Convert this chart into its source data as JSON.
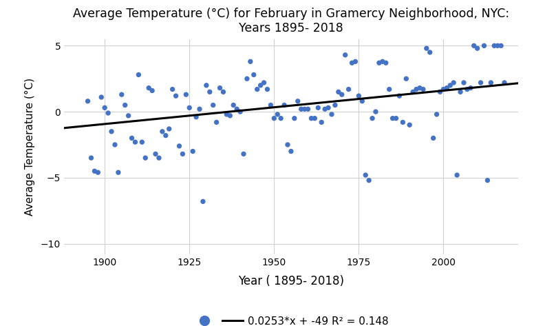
{
  "title": "Average Temperature (°C) for February in Gramercy Neighborhood, NYC:\nYears 1895- 2018",
  "xlabel": "Year ( 1895- 2018)",
  "ylabel": "Average Temperature (°C)",
  "scatter_color": "#4472C4",
  "line_color": "black",
  "slope": 0.0253,
  "intercept": -49,
  "r2": 0.148,
  "legend_eq": "0.0253*x + -49 R² = 0.148",
  "xlim": [
    1888,
    2022
  ],
  "ylim": [
    -10.8,
    5.5
  ],
  "yticks": [
    -10,
    -5,
    0,
    5
  ],
  "xticks": [
    1900,
    1925,
    1950,
    1975,
    2000
  ],
  "background_color": "#ffffff",
  "grid_color": "#d0d0d0",
  "data_points": [
    [
      1895,
      0.8
    ],
    [
      1896,
      -3.5
    ],
    [
      1897,
      -4.5
    ],
    [
      1898,
      -4.6
    ],
    [
      1899,
      1.1
    ],
    [
      1900,
      0.3
    ],
    [
      1901,
      -0.1
    ],
    [
      1902,
      -1.5
    ],
    [
      1903,
      -2.5
    ],
    [
      1904,
      -4.6
    ],
    [
      1905,
      1.3
    ],
    [
      1906,
      0.5
    ],
    [
      1907,
      -0.3
    ],
    [
      1908,
      -2.0
    ],
    [
      1909,
      -2.3
    ],
    [
      1910,
      2.8
    ],
    [
      1911,
      -2.3
    ],
    [
      1912,
      -3.5
    ],
    [
      1913,
      1.8
    ],
    [
      1914,
      1.6
    ],
    [
      1915,
      -3.2
    ],
    [
      1916,
      -3.5
    ],
    [
      1917,
      -1.5
    ],
    [
      1918,
      -1.8
    ],
    [
      1919,
      -1.3
    ],
    [
      1920,
      1.7
    ],
    [
      1921,
      1.2
    ],
    [
      1922,
      -2.6
    ],
    [
      1923,
      -3.2
    ],
    [
      1924,
      1.3
    ],
    [
      1925,
      0.3
    ],
    [
      1926,
      -3.0
    ],
    [
      1927,
      -0.4
    ],
    [
      1928,
      0.2
    ],
    [
      1929,
      -6.8
    ],
    [
      1930,
      2.0
    ],
    [
      1931,
      1.5
    ],
    [
      1932,
      0.5
    ],
    [
      1933,
      -0.8
    ],
    [
      1934,
      1.8
    ],
    [
      1935,
      1.5
    ],
    [
      1936,
      -0.2
    ],
    [
      1937,
      -0.3
    ],
    [
      1938,
      0.5
    ],
    [
      1939,
      0.2
    ],
    [
      1940,
      0.0
    ],
    [
      1941,
      -3.2
    ],
    [
      1942,
      2.5
    ],
    [
      1943,
      3.8
    ],
    [
      1944,
      2.8
    ],
    [
      1945,
      1.7
    ],
    [
      1946,
      2.0
    ],
    [
      1947,
      2.2
    ],
    [
      1948,
      1.7
    ],
    [
      1949,
      0.5
    ],
    [
      1950,
      -0.5
    ],
    [
      1951,
      -0.2
    ],
    [
      1952,
      -0.5
    ],
    [
      1953,
      0.5
    ],
    [
      1954,
      -2.5
    ],
    [
      1955,
      -3.0
    ],
    [
      1956,
      -0.5
    ],
    [
      1957,
      0.8
    ],
    [
      1958,
      0.2
    ],
    [
      1959,
      0.2
    ],
    [
      1960,
      0.2
    ],
    [
      1961,
      -0.5
    ],
    [
      1962,
      -0.5
    ],
    [
      1963,
      0.3
    ],
    [
      1964,
      -0.8
    ],
    [
      1965,
      0.2
    ],
    [
      1966,
      0.3
    ],
    [
      1967,
      -0.2
    ],
    [
      1968,
      0.5
    ],
    [
      1969,
      1.5
    ],
    [
      1970,
      1.3
    ],
    [
      1971,
      4.3
    ],
    [
      1972,
      1.7
    ],
    [
      1973,
      3.7
    ],
    [
      1974,
      3.8
    ],
    [
      1975,
      1.2
    ],
    [
      1976,
      0.8
    ],
    [
      1977,
      -4.8
    ],
    [
      1978,
      -5.2
    ],
    [
      1979,
      -0.5
    ],
    [
      1980,
      0.0
    ],
    [
      1981,
      3.7
    ],
    [
      1982,
      3.8
    ],
    [
      1983,
      3.7
    ],
    [
      1984,
      1.7
    ],
    [
      1985,
      -0.5
    ],
    [
      1986,
      -0.5
    ],
    [
      1987,
      1.2
    ],
    [
      1988,
      -0.8
    ],
    [
      1989,
      2.5
    ],
    [
      1990,
      -1.0
    ],
    [
      1991,
      1.5
    ],
    [
      1992,
      1.7
    ],
    [
      1993,
      1.8
    ],
    [
      1994,
      1.7
    ],
    [
      1995,
      4.8
    ],
    [
      1996,
      4.5
    ],
    [
      1997,
      -2.0
    ],
    [
      1998,
      -0.2
    ],
    [
      1999,
      1.5
    ],
    [
      2000,
      1.7
    ],
    [
      2001,
      1.8
    ],
    [
      2002,
      2.0
    ],
    [
      2003,
      2.2
    ],
    [
      2004,
      -4.8
    ],
    [
      2005,
      1.5
    ],
    [
      2006,
      2.2
    ],
    [
      2007,
      1.7
    ],
    [
      2008,
      1.8
    ],
    [
      2009,
      5.0
    ],
    [
      2010,
      4.8
    ],
    [
      2011,
      2.2
    ],
    [
      2012,
      5.0
    ],
    [
      2013,
      -5.2
    ],
    [
      2014,
      2.2
    ],
    [
      2015,
      5.0
    ],
    [
      2016,
      5.0
    ],
    [
      2017,
      5.0
    ],
    [
      2018,
      2.2
    ]
  ]
}
